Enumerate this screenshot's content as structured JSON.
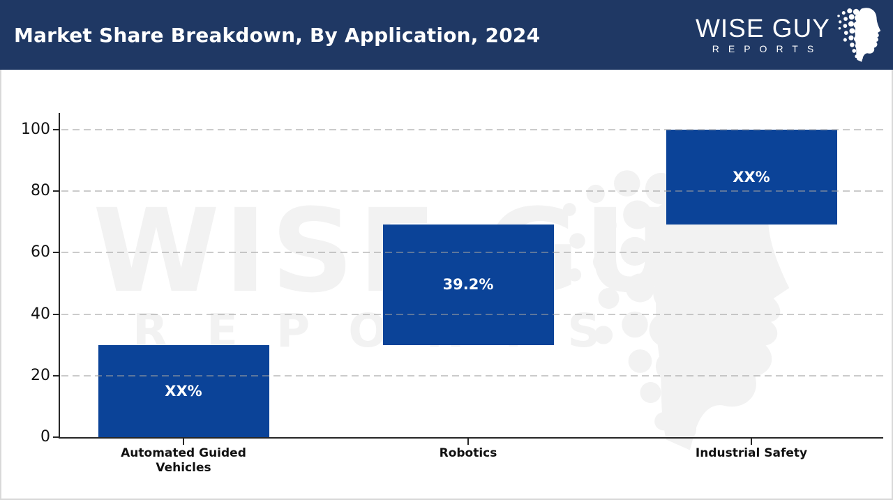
{
  "header": {
    "title": "Market Share Breakdown, By Application, 2024",
    "logo": {
      "line1": "WISE GUY",
      "line2": "REPORTS"
    }
  },
  "watermark": {
    "line1": "WISE GUY",
    "line2": "REPORTS"
  },
  "colors": {
    "header_bg": "#1f3864",
    "bar_blue": "#0b4398",
    "watermark_gray": "#f2f2f2",
    "axis": "#262626",
    "gridline": "#d8d8d8"
  },
  "chart_data": {
    "type": "bar",
    "subtype": "floating-segment-breakdown",
    "title": "Market Share Breakdown, By Application, 2024",
    "categories": [
      "Automated Guided Vehicles",
      "Robotics",
      "Industrial Safety"
    ],
    "segments": [
      {
        "category": "Automated Guided Vehicles",
        "start": 0,
        "end": 30,
        "label": "XX%"
      },
      {
        "category": "Robotics",
        "start": 30,
        "end": 69.2,
        "label": "39.2%"
      },
      {
        "category": "Industrial Safety",
        "start": 69.2,
        "end": 100,
        "label": "XX%"
      }
    ],
    "xlabel": "",
    "ylabel": "",
    "ylim": [
      0,
      100
    ],
    "yticks": [
      0,
      20,
      40,
      60,
      80,
      100
    ],
    "grid": "horizontal-dashed",
    "legend": "none",
    "bar_color": "#0b4398"
  }
}
